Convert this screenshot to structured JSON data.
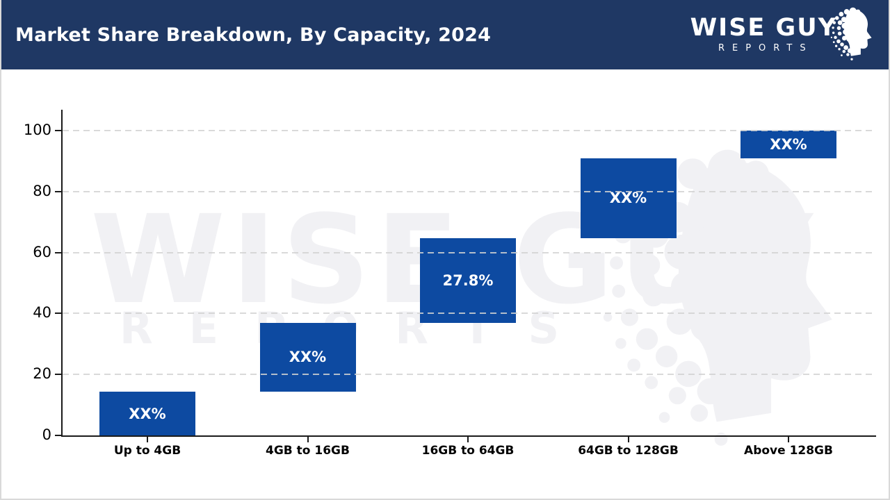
{
  "header": {
    "title": "Market Share Breakdown, By Capacity, 2024",
    "logo": {
      "line1": "WISE GUY",
      "line2": "REPORTS"
    }
  },
  "watermark": {
    "line1": "WISE GUY",
    "line2": "REPORTS"
  },
  "colors": {
    "header_bg": "#1f3864",
    "bar": "#0d4aa1",
    "bar_label": "#ffffff",
    "grid": "#d2d2d2",
    "axis": "#1a1a1a",
    "watermark": "#f1f1f4"
  },
  "chart_data": {
    "type": "bar",
    "subtype": "waterfall-floating-bars",
    "title": "Market Share Breakdown, By Capacity, 2024",
    "categories": [
      "Up to 4GB",
      "4GB to 16GB",
      "16GB to 64GB",
      "64GB to 128GB",
      "Above 128GB"
    ],
    "bars": [
      {
        "category": "Up to 4GB",
        "start": 0,
        "end": 14.3,
        "label": "XX%"
      },
      {
        "category": "4GB to 16GB",
        "start": 14.3,
        "end": 37.0,
        "label": "XX%"
      },
      {
        "category": "16GB to 64GB",
        "start": 37.0,
        "end": 64.8,
        "label": "27.8%",
        "value": 27.8
      },
      {
        "category": "64GB to 128GB",
        "start": 64.8,
        "end": 90.9,
        "label": "XX%"
      },
      {
        "category": "Above 128GB",
        "start": 90.9,
        "end": 100,
        "label": "XX%"
      }
    ],
    "yticks": [
      0,
      20,
      40,
      60,
      80,
      100
    ],
    "ylim": [
      0,
      106
    ],
    "xlabel": "",
    "ylabel": "",
    "grid": "horizontal-dashed",
    "legend": "none"
  }
}
